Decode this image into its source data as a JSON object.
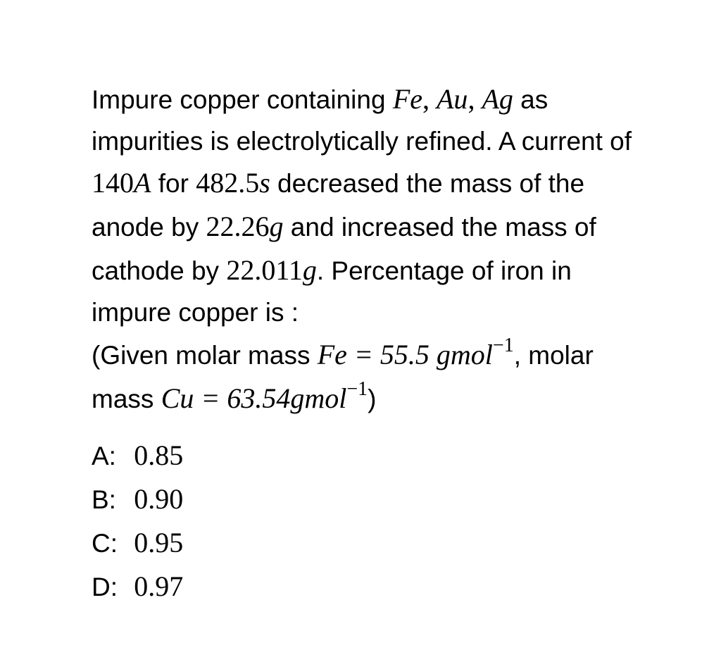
{
  "question": {
    "text_parts": {
      "p1": "Impure copper containing ",
      "p2": " as impurities is electrolytically refined. A current of ",
      "p3": " for ",
      "p4": " decreased the mass of the anode by ",
      "p5": " and increased the mass of cathode by ",
      "p6": ". Percentage of iron in impure copper is :",
      "p7": "(Given molar mass ",
      "p8": ", molar mass ",
      "p9": ")"
    },
    "math": {
      "fe": "Fe",
      "au": "Au",
      "ag": "Ag",
      "comma1": ", ",
      "comma2": ", ",
      "current_val": "140",
      "current_unit": "A",
      "time_val": "482.5",
      "time_unit": "s",
      "anode_mass": "22.26",
      "anode_unit": "g",
      "cathode_mass": "22.011",
      "cathode_unit": "g",
      "fe_eq": "Fe = 55.5 ",
      "fe_unit": "gmol",
      "exp": "−1",
      "cu_eq": "Cu = 63.54",
      "cu_unit": "gmol"
    }
  },
  "options": {
    "a": {
      "label": "A:",
      "value": "0.85"
    },
    "b": {
      "label": "B:",
      "value": "0.90"
    },
    "c": {
      "label": "C:",
      "value": "0.95"
    },
    "d": {
      "label": "D:",
      "value": "0.97"
    }
  },
  "style": {
    "background_color": "#ffffff",
    "text_color": "#000000",
    "body_fontsize": 37,
    "math_fontsize": 40,
    "superscript_fontsize": 28,
    "line_height": 1.55
  }
}
